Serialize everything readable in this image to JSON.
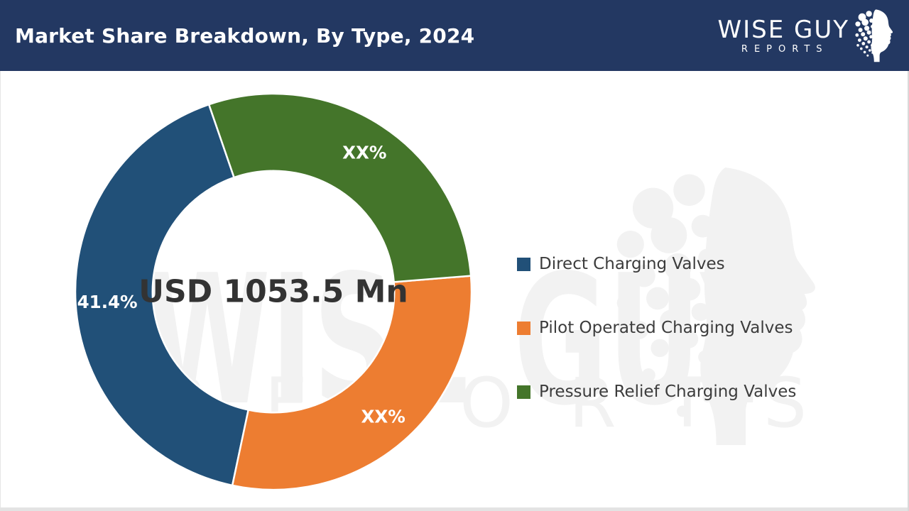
{
  "header": {
    "title": "Market Share Breakdown, By Type, 2024",
    "logo": {
      "line1": "WISE GUY",
      "line2": "REPORTS"
    }
  },
  "watermark": {
    "line1": "WISE GUY",
    "line2": "REPORTS"
  },
  "chart_data": {
    "type": "donut",
    "title": "Market Share Breakdown, By Type, 2024",
    "center_label": "USD 1053.5 Mn",
    "start_angle_deg": 109,
    "direction": "counterclockwise",
    "hole_ratio": 0.61,
    "label_radius_ratio": 0.84,
    "legend_position": "right",
    "segments": [
      {
        "name": "Direct Charging Valves",
        "value_pct": 41.4,
        "slice_label": "41.4%",
        "color": "#215078"
      },
      {
        "name": "Pilot Operated Charging Valves",
        "value_pct": 29.6,
        "slice_label": "XX%",
        "color": "#ED7D31"
      },
      {
        "name": "Pressure Relief Charging Valves",
        "value_pct": 29.0,
        "slice_label": "XX%",
        "color": "#44752A"
      }
    ]
  },
  "colors": {
    "header_bg": "#233862",
    "center_text": "#333333",
    "slice_label_text": "#ffffff",
    "legend_text": "#3c3c3c",
    "watermark": "#f2f2f2",
    "frame_border": "#d9d9d9"
  }
}
